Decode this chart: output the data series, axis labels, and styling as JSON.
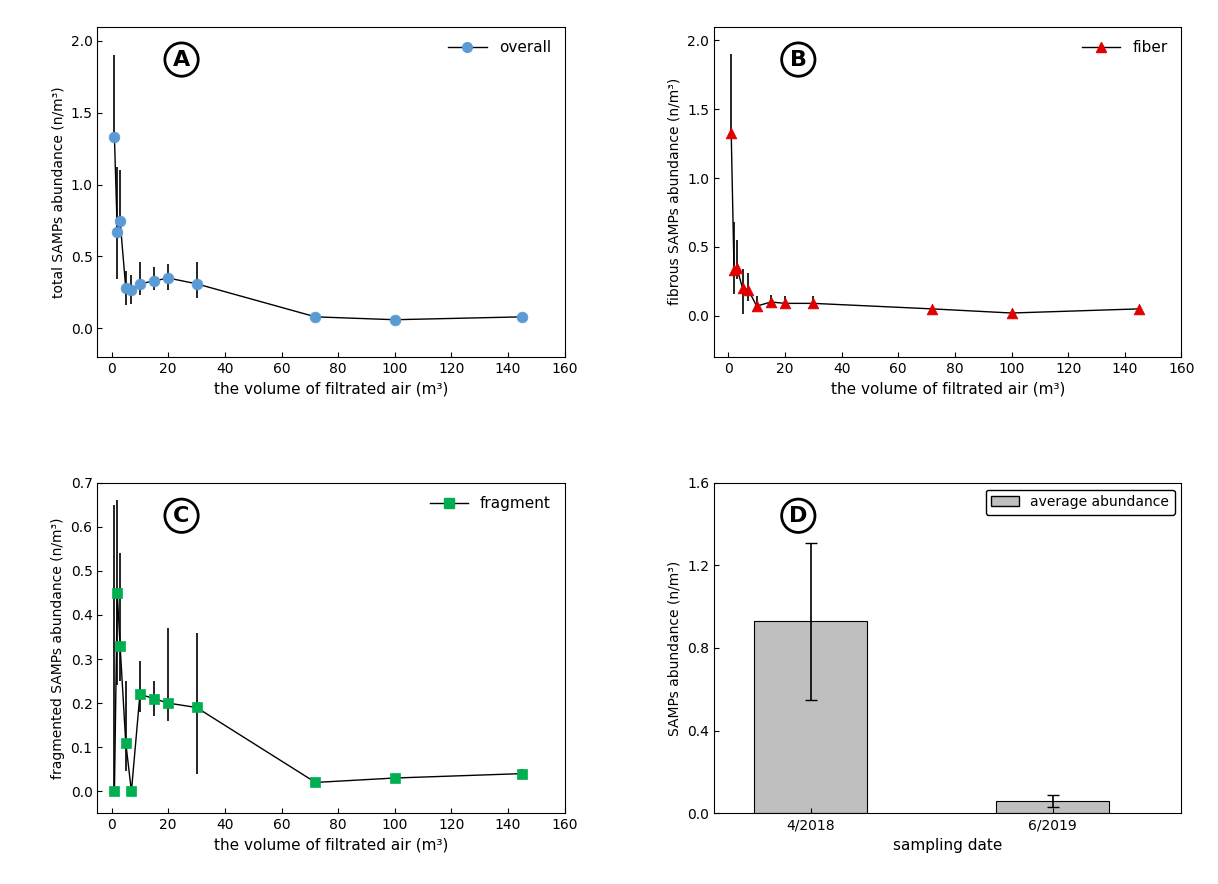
{
  "A": {
    "x": [
      1,
      2,
      3,
      5,
      7,
      10,
      15,
      20,
      30,
      72,
      100,
      145
    ],
    "y": [
      1.33,
      0.67,
      0.75,
      0.28,
      0.27,
      0.31,
      0.33,
      0.35,
      0.31,
      0.08,
      0.06,
      0.08
    ],
    "yerr_low": [
      0.0,
      0.33,
      0.05,
      0.12,
      0.1,
      0.08,
      0.06,
      0.08,
      0.1,
      0.03,
      0.025,
      0.025
    ],
    "yerr_high": [
      0.57,
      0.45,
      0.35,
      0.12,
      0.1,
      0.15,
      0.1,
      0.1,
      0.15,
      0.03,
      0.025,
      0.03
    ],
    "ylabel": "total SAMPs abundance (n/m³)",
    "xlabel": "the volume of filtrated air (m³)",
    "label": "overall",
    "color": "#5b9bd5",
    "marker": "o",
    "panel": "A"
  },
  "B": {
    "x": [
      1,
      2,
      3,
      5,
      7,
      10,
      15,
      20,
      30,
      72,
      100,
      145
    ],
    "y": [
      1.33,
      0.33,
      0.35,
      0.2,
      0.19,
      0.07,
      0.1,
      0.09,
      0.09,
      0.05,
      0.02,
      0.05
    ],
    "yerr_low": [
      0.0,
      0.17,
      0.08,
      0.19,
      0.08,
      0.025,
      0.035,
      0.025,
      0.025,
      0.015,
      0.01,
      0.015
    ],
    "yerr_high": [
      0.57,
      0.35,
      0.2,
      0.14,
      0.12,
      0.07,
      0.05,
      0.05,
      0.05,
      0.015,
      0.01,
      0.015
    ],
    "ylabel": "fibrous SAMPs abundance (n/m³)",
    "xlabel": "the volume of filtrated air (m³)",
    "label": "fiber",
    "color": "#e00000",
    "marker": "^",
    "panel": "B"
  },
  "C": {
    "x": [
      1,
      2,
      3,
      5,
      7,
      10,
      15,
      20,
      30,
      72,
      100,
      145
    ],
    "y": [
      0.0,
      0.45,
      0.33,
      0.11,
      0.0,
      0.22,
      0.21,
      0.2,
      0.19,
      0.02,
      0.03,
      0.04
    ],
    "yerr_low": [
      0.0,
      0.21,
      0.08,
      0.065,
      0.0,
      0.04,
      0.04,
      0.04,
      0.15,
      0.01,
      0.01,
      0.01
    ],
    "yerr_high": [
      0.65,
      0.21,
      0.21,
      0.14,
      0.0,
      0.075,
      0.04,
      0.17,
      0.17,
      0.01,
      0.01,
      0.01
    ],
    "ylabel": "fragmented SAMPs abundance (n/m³)",
    "xlabel": "the volume of filtrated air (m³)",
    "label": "fragment",
    "color": "#00b050",
    "marker": "s",
    "panel": "C"
  },
  "D": {
    "categories": [
      "4/2018",
      "6/2019"
    ],
    "values": [
      0.93,
      0.06
    ],
    "yerr": [
      0.38,
      0.03
    ],
    "ylabel": "SAMPs abundance (n/m³)",
    "xlabel": "sampling date",
    "label": "average abundance",
    "color": "#bfbfbf",
    "panel": "D"
  },
  "xlim_scatter": [
    -5,
    160
  ],
  "ylim_A": [
    -0.2,
    2.1
  ],
  "ylim_B": [
    -0.3,
    2.1
  ],
  "ylim_C": [
    -0.05,
    0.7
  ],
  "ylim_D": [
    0,
    1.6
  ],
  "xticks_scatter": [
    0,
    20,
    40,
    60,
    80,
    100,
    120,
    140,
    160
  ],
  "background_color": "#ffffff"
}
